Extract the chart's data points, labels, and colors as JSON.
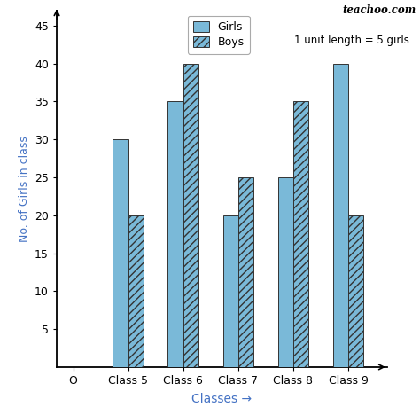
{
  "categories": [
    "Class 5",
    "Class 6",
    "Class 7",
    "Class 8",
    "Class 9"
  ],
  "girls_values": [
    30,
    35,
    20,
    25,
    40
  ],
  "boys_values": [
    20,
    40,
    25,
    35,
    20
  ],
  "bar_color": "#7ab9d8",
  "bar_edge_color": "#333333",
  "ylabel": "No. of Girls in class",
  "xlabel_arrow": "Classes →",
  "yticks": [
    5,
    10,
    15,
    20,
    25,
    30,
    35,
    40,
    45
  ],
  "ylim": [
    0,
    47
  ],
  "xlim_left_label": "O",
  "annotation": "1 unit length = 5 girls",
  "legend_girls": "Girls",
  "legend_boys": "Boys",
  "watermark": "teachoo.com",
  "bar_width": 0.28,
  "ylabel_color": "#4472c4",
  "xlabel_color": "#4472c4",
  "hatch_pattern": "////",
  "background_color": "#ffffff"
}
